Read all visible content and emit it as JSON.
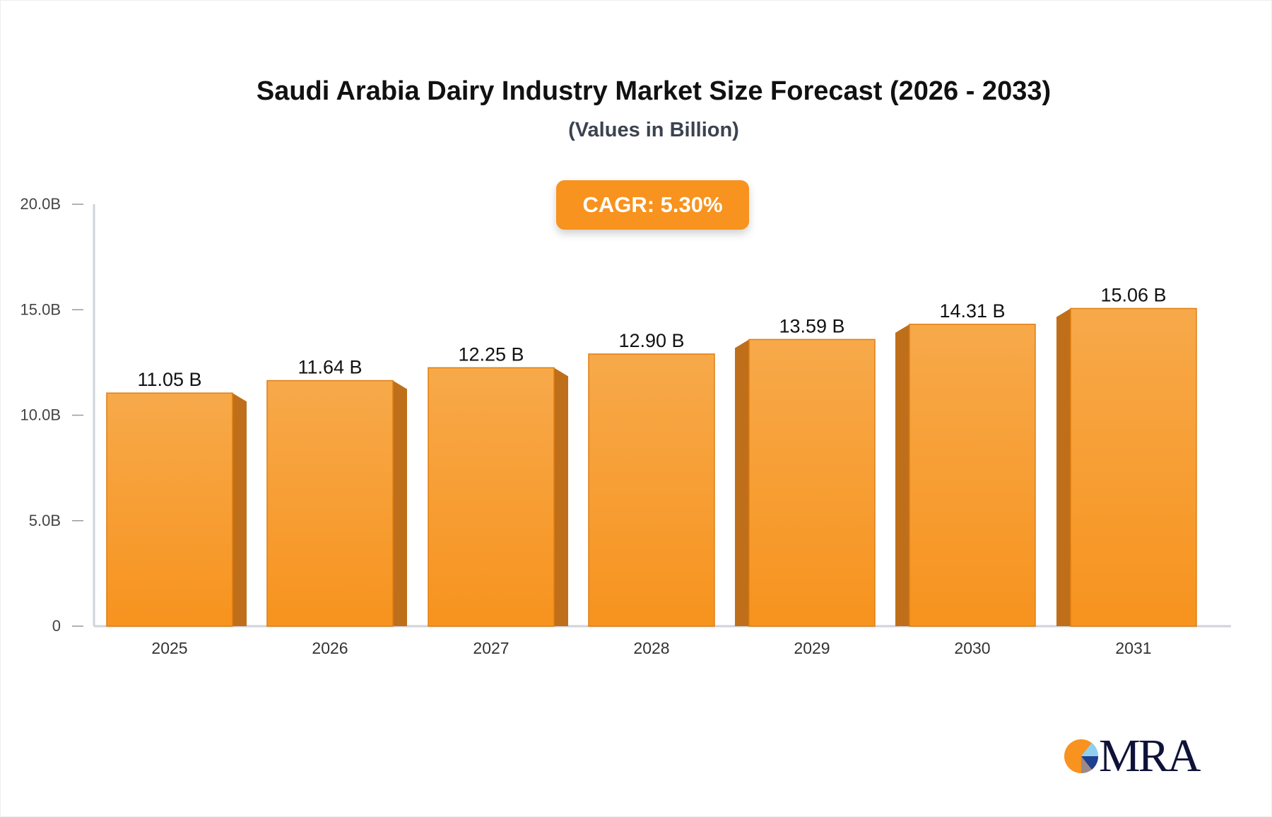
{
  "chart_data": {
    "type": "bar",
    "title": "Saudi Arabia Dairy Industry Market Size Forecast (2026 - 2033)",
    "subtitle": "(Values in Billion)",
    "annotation": "CAGR: 5.30%",
    "categories": [
      "2025",
      "2026",
      "2027",
      "2028",
      "2029",
      "2030",
      "2031"
    ],
    "values": [
      11.05,
      11.64,
      12.25,
      12.9,
      13.59,
      14.31,
      15.06
    ],
    "data_labels": [
      "11.05 B",
      "11.64 B",
      "12.25 B",
      "12.90 B",
      "13.59 B",
      "14.31 B",
      "15.06 B"
    ],
    "ylim": [
      0,
      20
    ],
    "yticks": [
      0,
      5,
      10,
      15,
      20
    ],
    "ytick_labels": [
      "0",
      "5.0B",
      "10.0B",
      "15.0B",
      "20.0B"
    ],
    "xlabel": "",
    "ylabel": "",
    "grid": false,
    "colors": {
      "bar_top": "#f7a94a",
      "bar_bottom": "#f7931e",
      "bar_side": "#bf6f1a",
      "cagr_badge": "#f7931e"
    }
  },
  "logo": {
    "text": "MRA"
  }
}
